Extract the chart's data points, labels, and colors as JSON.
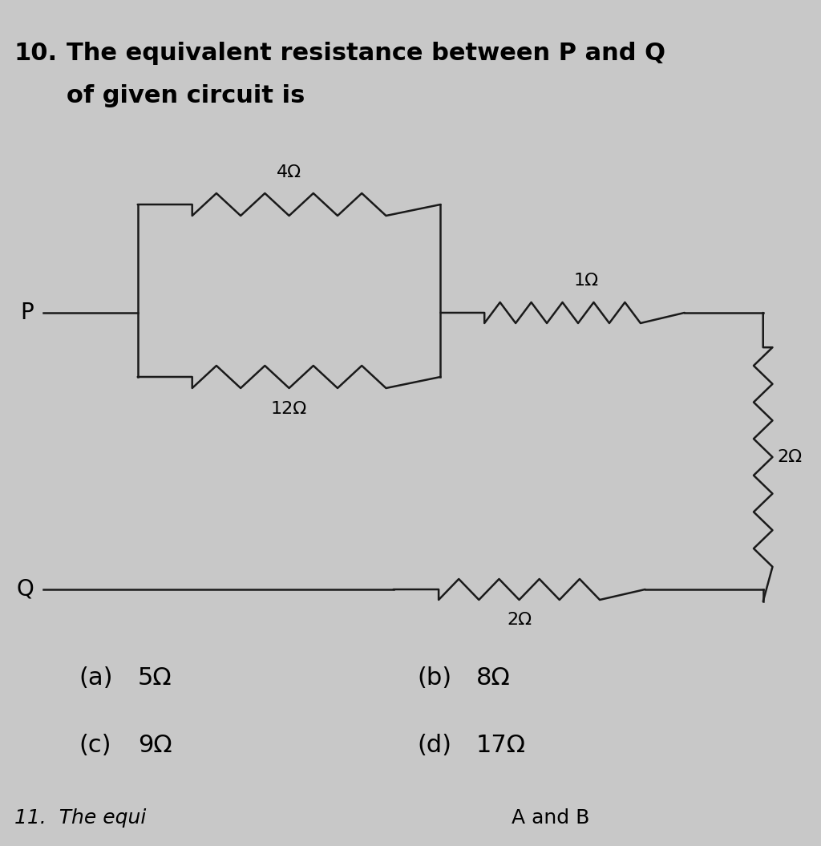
{
  "title_num": "10.",
  "background_color": "#c8c8c8",
  "resistor_color": "#1a1a1a",
  "wire_color": "#1a1a1a",
  "options": [
    {
      "label": "(a)",
      "value": "5Ω"
    },
    {
      "label": "(b)",
      "value": "8Ω"
    },
    {
      "label": "(c)",
      "value": "9Ω"
    },
    {
      "label": "(d)",
      "value": "17Ω"
    }
  ],
  "resistor_labels": {
    "R1": "4Ω",
    "R2": "12Ω",
    "R3": "1Ω",
    "R4_vert": "2Ω",
    "R5_bot": "2Ω"
  },
  "node_labels": {
    "P": "P",
    "Q": "Q"
  },
  "title_line1": "The equivalent resistance between P and Q",
  "title_line2": "of given circuit is",
  "bottom_text_left": "11.  The equi",
  "bottom_text_right": "A and B"
}
